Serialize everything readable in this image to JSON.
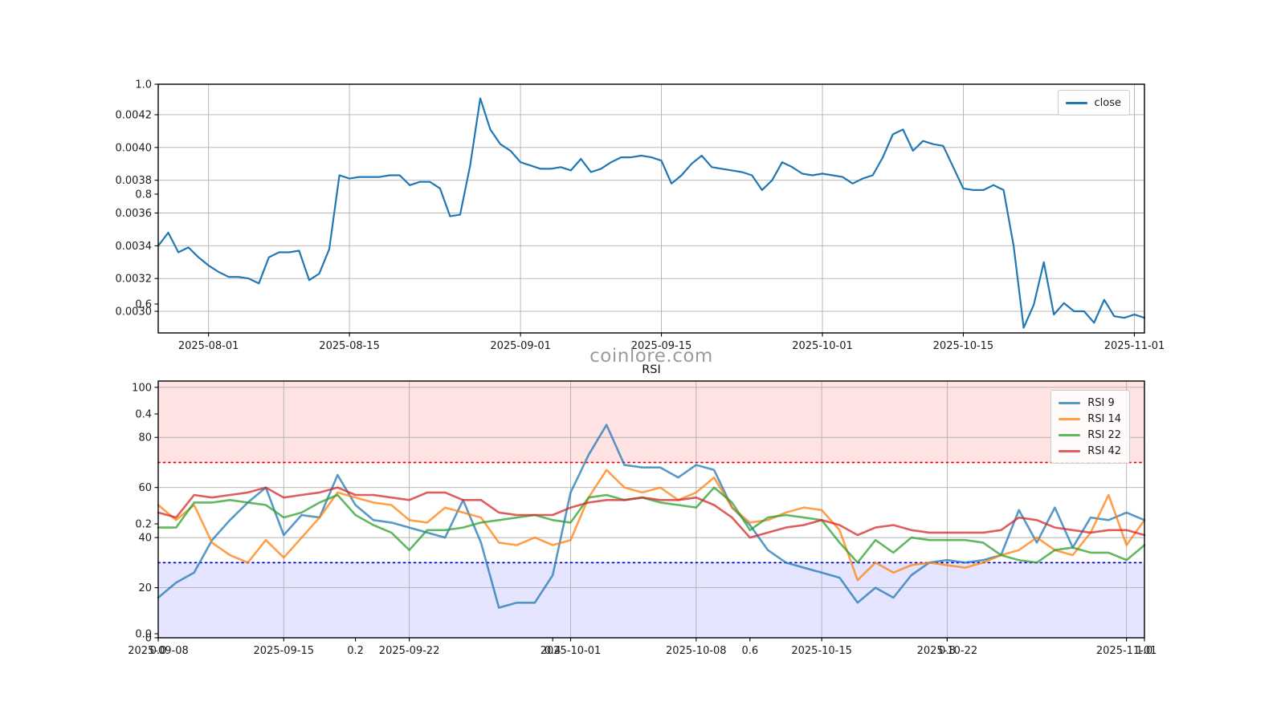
{
  "watermark": "coinlore.com",
  "overlay_axis": {
    "yticks": [
      "1.0",
      "0.8",
      "0.6",
      "0.4",
      "0.2",
      "0.0"
    ],
    "xticks": [
      "0.0",
      "0.2",
      "0.4",
      "0.6",
      "0.8",
      "1.0"
    ]
  },
  "chart_data": [
    {
      "type": "line",
      "title": "",
      "xlabel": "",
      "ylabel": "",
      "grid": true,
      "x_start": "2025-07-27",
      "x_end": "2025-11-02",
      "freq": "daily",
      "ylim": [
        0.002868,
        0.004386
      ],
      "yticks": [
        "0.0030",
        "0.0032",
        "0.0034",
        "0.0036",
        "0.0038",
        "0.0040",
        "0.0042"
      ],
      "ytick_values": [
        0.003,
        0.0032,
        0.0034,
        0.0036,
        0.0038,
        0.004,
        0.0042
      ],
      "xticks": [
        "2025-08-01",
        "2025-08-15",
        "2025-09-01",
        "2025-09-15",
        "2025-10-01",
        "2025-10-15",
        "2025-11-01"
      ],
      "legend": {
        "position": "upper right",
        "entries": [
          {
            "label": "close",
            "color": "#1f77b4",
            "opacity": 1
          }
        ]
      },
      "series": [
        {
          "name": "close",
          "color": "#1f77b4",
          "opacity": 1,
          "width": 2.2,
          "values": [
            0.0034,
            0.00348,
            0.00336,
            0.00339,
            0.00333,
            0.00328,
            0.00324,
            0.00321,
            0.00321,
            0.0032,
            0.00317,
            0.00333,
            0.00336,
            0.00336,
            0.00337,
            0.00319,
            0.00323,
            0.00338,
            0.00383,
            0.00381,
            0.00382,
            0.00382,
            0.00382,
            0.00383,
            0.00383,
            0.00377,
            0.00379,
            0.00379,
            0.00375,
            0.00358,
            0.00359,
            0.00389,
            0.0043,
            0.00411,
            0.00402,
            0.00398,
            0.00391,
            0.00389,
            0.00387,
            0.00387,
            0.00388,
            0.00386,
            0.00393,
            0.00385,
            0.00387,
            0.00391,
            0.00394,
            0.00394,
            0.00395,
            0.00394,
            0.00392,
            0.00378,
            0.00383,
            0.0039,
            0.00395,
            0.00388,
            0.00387,
            0.00386,
            0.00385,
            0.00383,
            0.00374,
            0.0038,
            0.00391,
            0.00388,
            0.00384,
            0.00383,
            0.00384,
            0.00383,
            0.00382,
            0.00378,
            0.00381,
            0.00383,
            0.00394,
            0.00408,
            0.00411,
            0.00398,
            0.00404,
            0.00402,
            0.00401,
            0.00388,
            0.00375,
            0.00374,
            0.00374,
            0.00377,
            0.00374,
            0.0034,
            0.0029,
            0.00304,
            0.0033,
            0.00298,
            0.00305,
            0.003,
            0.003,
            0.00293,
            0.00307,
            0.00297,
            0.00296,
            0.00298,
            0.00296
          ]
        }
      ]
    },
    {
      "type": "line",
      "title": "RSI",
      "xlabel": "",
      "ylabel": "",
      "grid": true,
      "x_start": "2025-09-08",
      "x_end": "2025-11-02",
      "freq": "daily",
      "ylim": [
        0,
        102.5
      ],
      "yticks": [
        "0",
        "20",
        "40",
        "60",
        "80",
        "100"
      ],
      "ytick_values": [
        0,
        20,
        40,
        60,
        80,
        100
      ],
      "xticks": [
        "2025-09-08",
        "2025-09-15",
        "2025-09-22",
        "2025-10-01",
        "2025-10-08",
        "2025-10-15",
        "2025-10-22",
        "2025-11-01"
      ],
      "bands": [
        {
          "name": "overbought-band",
          "from": 70,
          "to": 102.5,
          "color": "rgba(255,0,0,0.11)"
        },
        {
          "name": "oversold-band",
          "from": 0,
          "to": 30,
          "color": "rgba(0,0,255,0.10)"
        }
      ],
      "hlines": [
        {
          "name": "overbought-threshold-line",
          "y": 70,
          "color": "#e8000b",
          "style": "dotted"
        },
        {
          "name": "oversold-threshold-line",
          "y": 30,
          "color": "#0000cd",
          "style": "dotted"
        }
      ],
      "legend": {
        "position": "upper right",
        "entries": [
          {
            "label": "RSI 9",
            "color": "#1f77b4",
            "opacity": 0.75
          },
          {
            "label": "RSI 14",
            "color": "#ff7f0e",
            "opacity": 0.75
          },
          {
            "label": "RSI 22",
            "color": "#2ca02c",
            "opacity": 0.75
          },
          {
            "label": "RSI 42",
            "color": "#d62728",
            "opacity": 0.75
          }
        ]
      },
      "series": [
        {
          "name": "RSI 9",
          "color": "#1f77b4",
          "opacity": 0.75,
          "width": 2.6,
          "values": [
            16,
            22,
            26,
            39,
            47,
            54,
            60,
            41,
            49,
            48,
            65,
            53,
            47,
            46,
            44,
            42,
            40,
            55,
            38,
            12,
            14,
            14,
            25,
            58,
            73,
            85,
            69,
            68,
            68,
            64,
            69,
            67,
            52,
            45,
            35,
            30,
            28,
            26,
            24,
            14,
            20,
            16,
            25,
            30,
            31,
            30,
            31,
            33,
            51,
            38,
            52,
            36,
            48,
            47,
            50,
            47
          ]
        },
        {
          "name": "RSI 14",
          "color": "#ff7f0e",
          "opacity": 0.75,
          "width": 2.6,
          "values": [
            53,
            47,
            53,
            38,
            33,
            30,
            39,
            32,
            40,
            48,
            58,
            56,
            54,
            53,
            47,
            46,
            52,
            50,
            48,
            38,
            37,
            40,
            37,
            39,
            56,
            67,
            60,
            58,
            60,
            55,
            58,
            64,
            52,
            46,
            47,
            50,
            52,
            51,
            43,
            23,
            30,
            26,
            29,
            30,
            29,
            28,
            30,
            33,
            35,
            40,
            35,
            33,
            42,
            57,
            37,
            47
          ]
        },
        {
          "name": "RSI 22",
          "color": "#2ca02c",
          "opacity": 0.75,
          "width": 2.6,
          "values": [
            44,
            44,
            54,
            54,
            55,
            54,
            53,
            48,
            50,
            54,
            57,
            49,
            45,
            42,
            35,
            43,
            43,
            44,
            46,
            47,
            48,
            49,
            47,
            46,
            56,
            57,
            55,
            56,
            54,
            53,
            52,
            60,
            54,
            43,
            48,
            49,
            48,
            47,
            38,
            30,
            39,
            34,
            40,
            39,
            39,
            39,
            38,
            33,
            31,
            30,
            35,
            36,
            34,
            34,
            31,
            37
          ]
        },
        {
          "name": "RSI 42",
          "color": "#d62728",
          "opacity": 0.75,
          "width": 2.6,
          "values": [
            50,
            48,
            57,
            56,
            57,
            58,
            60,
            56,
            57,
            58,
            60,
            57,
            57,
            56,
            55,
            58,
            58,
            55,
            55,
            50,
            49,
            49,
            49,
            52,
            54,
            55,
            55,
            56,
            55,
            55,
            56,
            53,
            48,
            40,
            42,
            44,
            45,
            47,
            45,
            41,
            44,
            45,
            43,
            42,
            42,
            42,
            42,
            43,
            48,
            47,
            44,
            43,
            42,
            43,
            43,
            41
          ]
        }
      ]
    }
  ]
}
